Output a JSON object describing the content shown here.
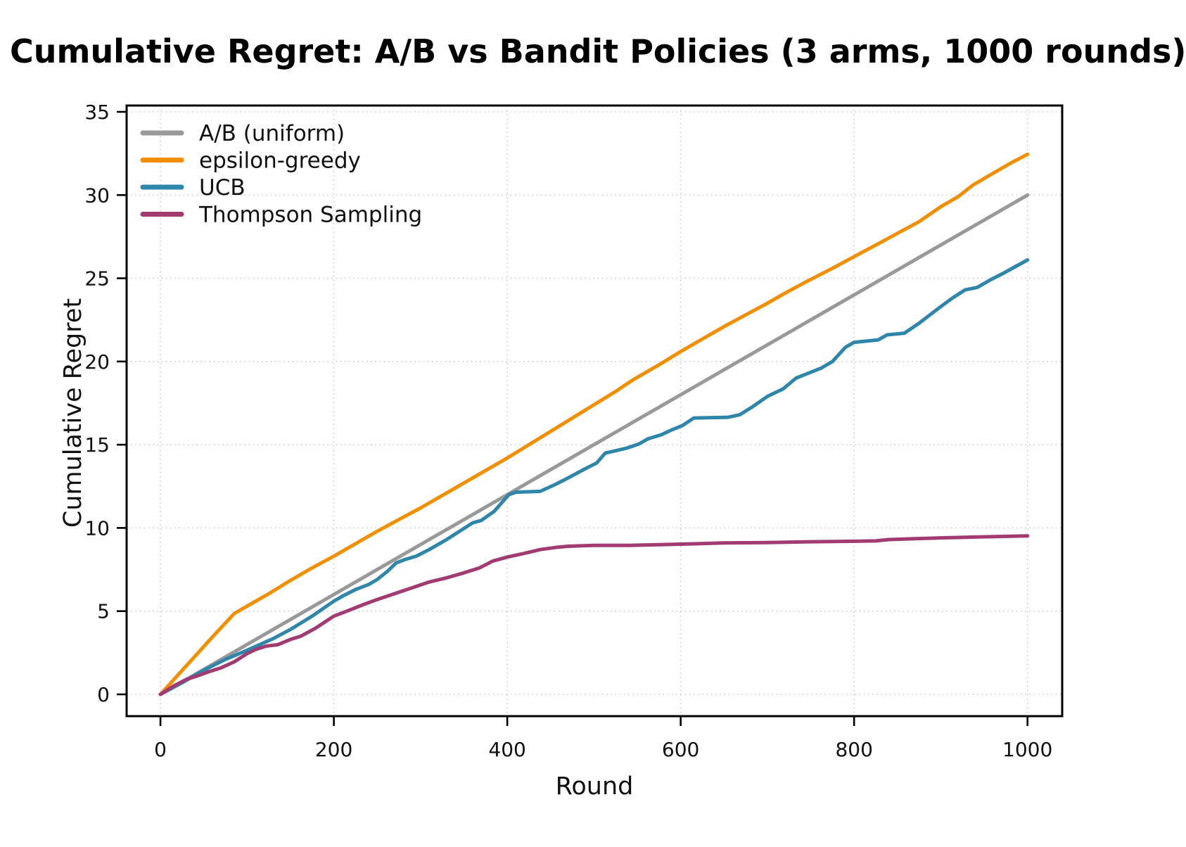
{
  "chart_data": {
    "type": "line",
    "title": "Cumulative Regret: A/B vs Bandit Policies (3 arms, 1000 rounds)",
    "xlabel": "Round",
    "ylabel": "Cumulative Regret",
    "xlim": [
      -39,
      1040
    ],
    "ylim": [
      -1.31,
      35.38
    ],
    "x_ticks": [
      0,
      200,
      400,
      600,
      800,
      1000
    ],
    "y_ticks": [
      0,
      5,
      10,
      15,
      20,
      25,
      30,
      35
    ],
    "grid": "dotted",
    "grid_color": "#cccccc",
    "spine_color": "#000000",
    "legend": {
      "position": "upper-left",
      "frame": false
    },
    "series": [
      {
        "name": "A/B (uniform)",
        "color": "#999999",
        "points": [
          [
            0,
            0
          ],
          [
            250,
            7.5
          ],
          [
            500,
            15.0
          ],
          [
            750,
            22.5
          ],
          [
            1000,
            30.0
          ]
        ]
      },
      {
        "name": "epsilon-greedy",
        "color": "#F18F01",
        "points": [
          [
            0,
            0
          ],
          [
            20,
            1.15
          ],
          [
            40,
            2.3
          ],
          [
            60,
            3.45
          ],
          [
            85,
            4.85
          ],
          [
            100,
            5.3
          ],
          [
            125,
            6.05
          ],
          [
            150,
            6.85
          ],
          [
            175,
            7.6
          ],
          [
            200,
            8.3
          ],
          [
            225,
            9.05
          ],
          [
            250,
            9.8
          ],
          [
            275,
            10.5
          ],
          [
            300,
            11.2
          ],
          [
            325,
            11.95
          ],
          [
            350,
            12.7
          ],
          [
            375,
            13.45
          ],
          [
            400,
            14.2
          ],
          [
            425,
            15.0
          ],
          [
            450,
            15.8
          ],
          [
            475,
            16.6
          ],
          [
            500,
            17.4
          ],
          [
            525,
            18.2
          ],
          [
            545,
            18.9
          ],
          [
            575,
            19.8
          ],
          [
            600,
            20.6
          ],
          [
            625,
            21.35
          ],
          [
            650,
            22.1
          ],
          [
            675,
            22.8
          ],
          [
            700,
            23.5
          ],
          [
            720,
            24.1
          ],
          [
            745,
            24.8
          ],
          [
            775,
            25.6
          ],
          [
            800,
            26.3
          ],
          [
            825,
            27.0
          ],
          [
            850,
            27.7
          ],
          [
            875,
            28.4
          ],
          [
            900,
            29.3
          ],
          [
            920,
            29.9
          ],
          [
            937,
            30.6
          ],
          [
            960,
            31.3
          ],
          [
            980,
            31.9
          ],
          [
            1000,
            32.45
          ]
        ]
      },
      {
        "name": "UCB",
        "color": "#2E86AB",
        "points": [
          [
            0,
            0
          ],
          [
            25,
            0.7
          ],
          [
            50,
            1.45
          ],
          [
            75,
            2.1
          ],
          [
            100,
            2.65
          ],
          [
            115,
            3.0
          ],
          [
            130,
            3.35
          ],
          [
            150,
            3.9
          ],
          [
            175,
            4.7
          ],
          [
            200,
            5.6
          ],
          [
            210,
            5.9
          ],
          [
            225,
            6.3
          ],
          [
            240,
            6.6
          ],
          [
            250,
            6.9
          ],
          [
            262,
            7.4
          ],
          [
            272,
            7.9
          ],
          [
            282,
            8.1
          ],
          [
            295,
            8.3
          ],
          [
            310,
            8.7
          ],
          [
            330,
            9.3
          ],
          [
            348,
            9.9
          ],
          [
            360,
            10.3
          ],
          [
            370,
            10.45
          ],
          [
            385,
            11.0
          ],
          [
            395,
            11.6
          ],
          [
            402,
            12.0
          ],
          [
            410,
            12.15
          ],
          [
            438,
            12.2
          ],
          [
            455,
            12.6
          ],
          [
            470,
            13.0
          ],
          [
            488,
            13.5
          ],
          [
            503,
            13.9
          ],
          [
            513,
            14.5
          ],
          [
            522,
            14.6
          ],
          [
            538,
            14.8
          ],
          [
            552,
            15.05
          ],
          [
            562,
            15.35
          ],
          [
            578,
            15.6
          ],
          [
            590,
            15.9
          ],
          [
            602,
            16.15
          ],
          [
            615,
            16.6
          ],
          [
            655,
            16.65
          ],
          [
            668,
            16.8
          ],
          [
            682,
            17.25
          ],
          [
            700,
            17.9
          ],
          [
            718,
            18.35
          ],
          [
            733,
            19.0
          ],
          [
            750,
            19.35
          ],
          [
            762,
            19.6
          ],
          [
            775,
            20.0
          ],
          [
            790,
            20.85
          ],
          [
            800,
            21.15
          ],
          [
            828,
            21.3
          ],
          [
            838,
            21.6
          ],
          [
            858,
            21.7
          ],
          [
            875,
            22.3
          ],
          [
            900,
            23.3
          ],
          [
            913,
            23.8
          ],
          [
            928,
            24.3
          ],
          [
            942,
            24.45
          ],
          [
            957,
            24.9
          ],
          [
            972,
            25.3
          ],
          [
            986,
            25.7
          ],
          [
            1000,
            26.1
          ]
        ]
      },
      {
        "name": "Thompson Sampling",
        "color": "#A23B72",
        "points": [
          [
            0,
            0
          ],
          [
            15,
            0.5
          ],
          [
            30,
            0.9
          ],
          [
            42,
            1.1
          ],
          [
            55,
            1.35
          ],
          [
            70,
            1.6
          ],
          [
            85,
            1.95
          ],
          [
            100,
            2.45
          ],
          [
            110,
            2.7
          ],
          [
            122,
            2.9
          ],
          [
            135,
            2.98
          ],
          [
            150,
            3.3
          ],
          [
            162,
            3.5
          ],
          [
            178,
            3.95
          ],
          [
            200,
            4.7
          ],
          [
            215,
            5.0
          ],
          [
            232,
            5.35
          ],
          [
            250,
            5.7
          ],
          [
            270,
            6.05
          ],
          [
            290,
            6.4
          ],
          [
            310,
            6.75
          ],
          [
            330,
            7.0
          ],
          [
            350,
            7.3
          ],
          [
            368,
            7.6
          ],
          [
            383,
            8.0
          ],
          [
            400,
            8.25
          ],
          [
            418,
            8.45
          ],
          [
            438,
            8.7
          ],
          [
            455,
            8.82
          ],
          [
            470,
            8.9
          ],
          [
            500,
            8.95
          ],
          [
            540,
            8.95
          ],
          [
            580,
            9.0
          ],
          [
            620,
            9.05
          ],
          [
            650,
            9.1
          ],
          [
            700,
            9.12
          ],
          [
            750,
            9.17
          ],
          [
            800,
            9.2
          ],
          [
            825,
            9.22
          ],
          [
            840,
            9.3
          ],
          [
            870,
            9.35
          ],
          [
            900,
            9.4
          ],
          [
            940,
            9.45
          ],
          [
            1000,
            9.52
          ]
        ]
      }
    ]
  }
}
